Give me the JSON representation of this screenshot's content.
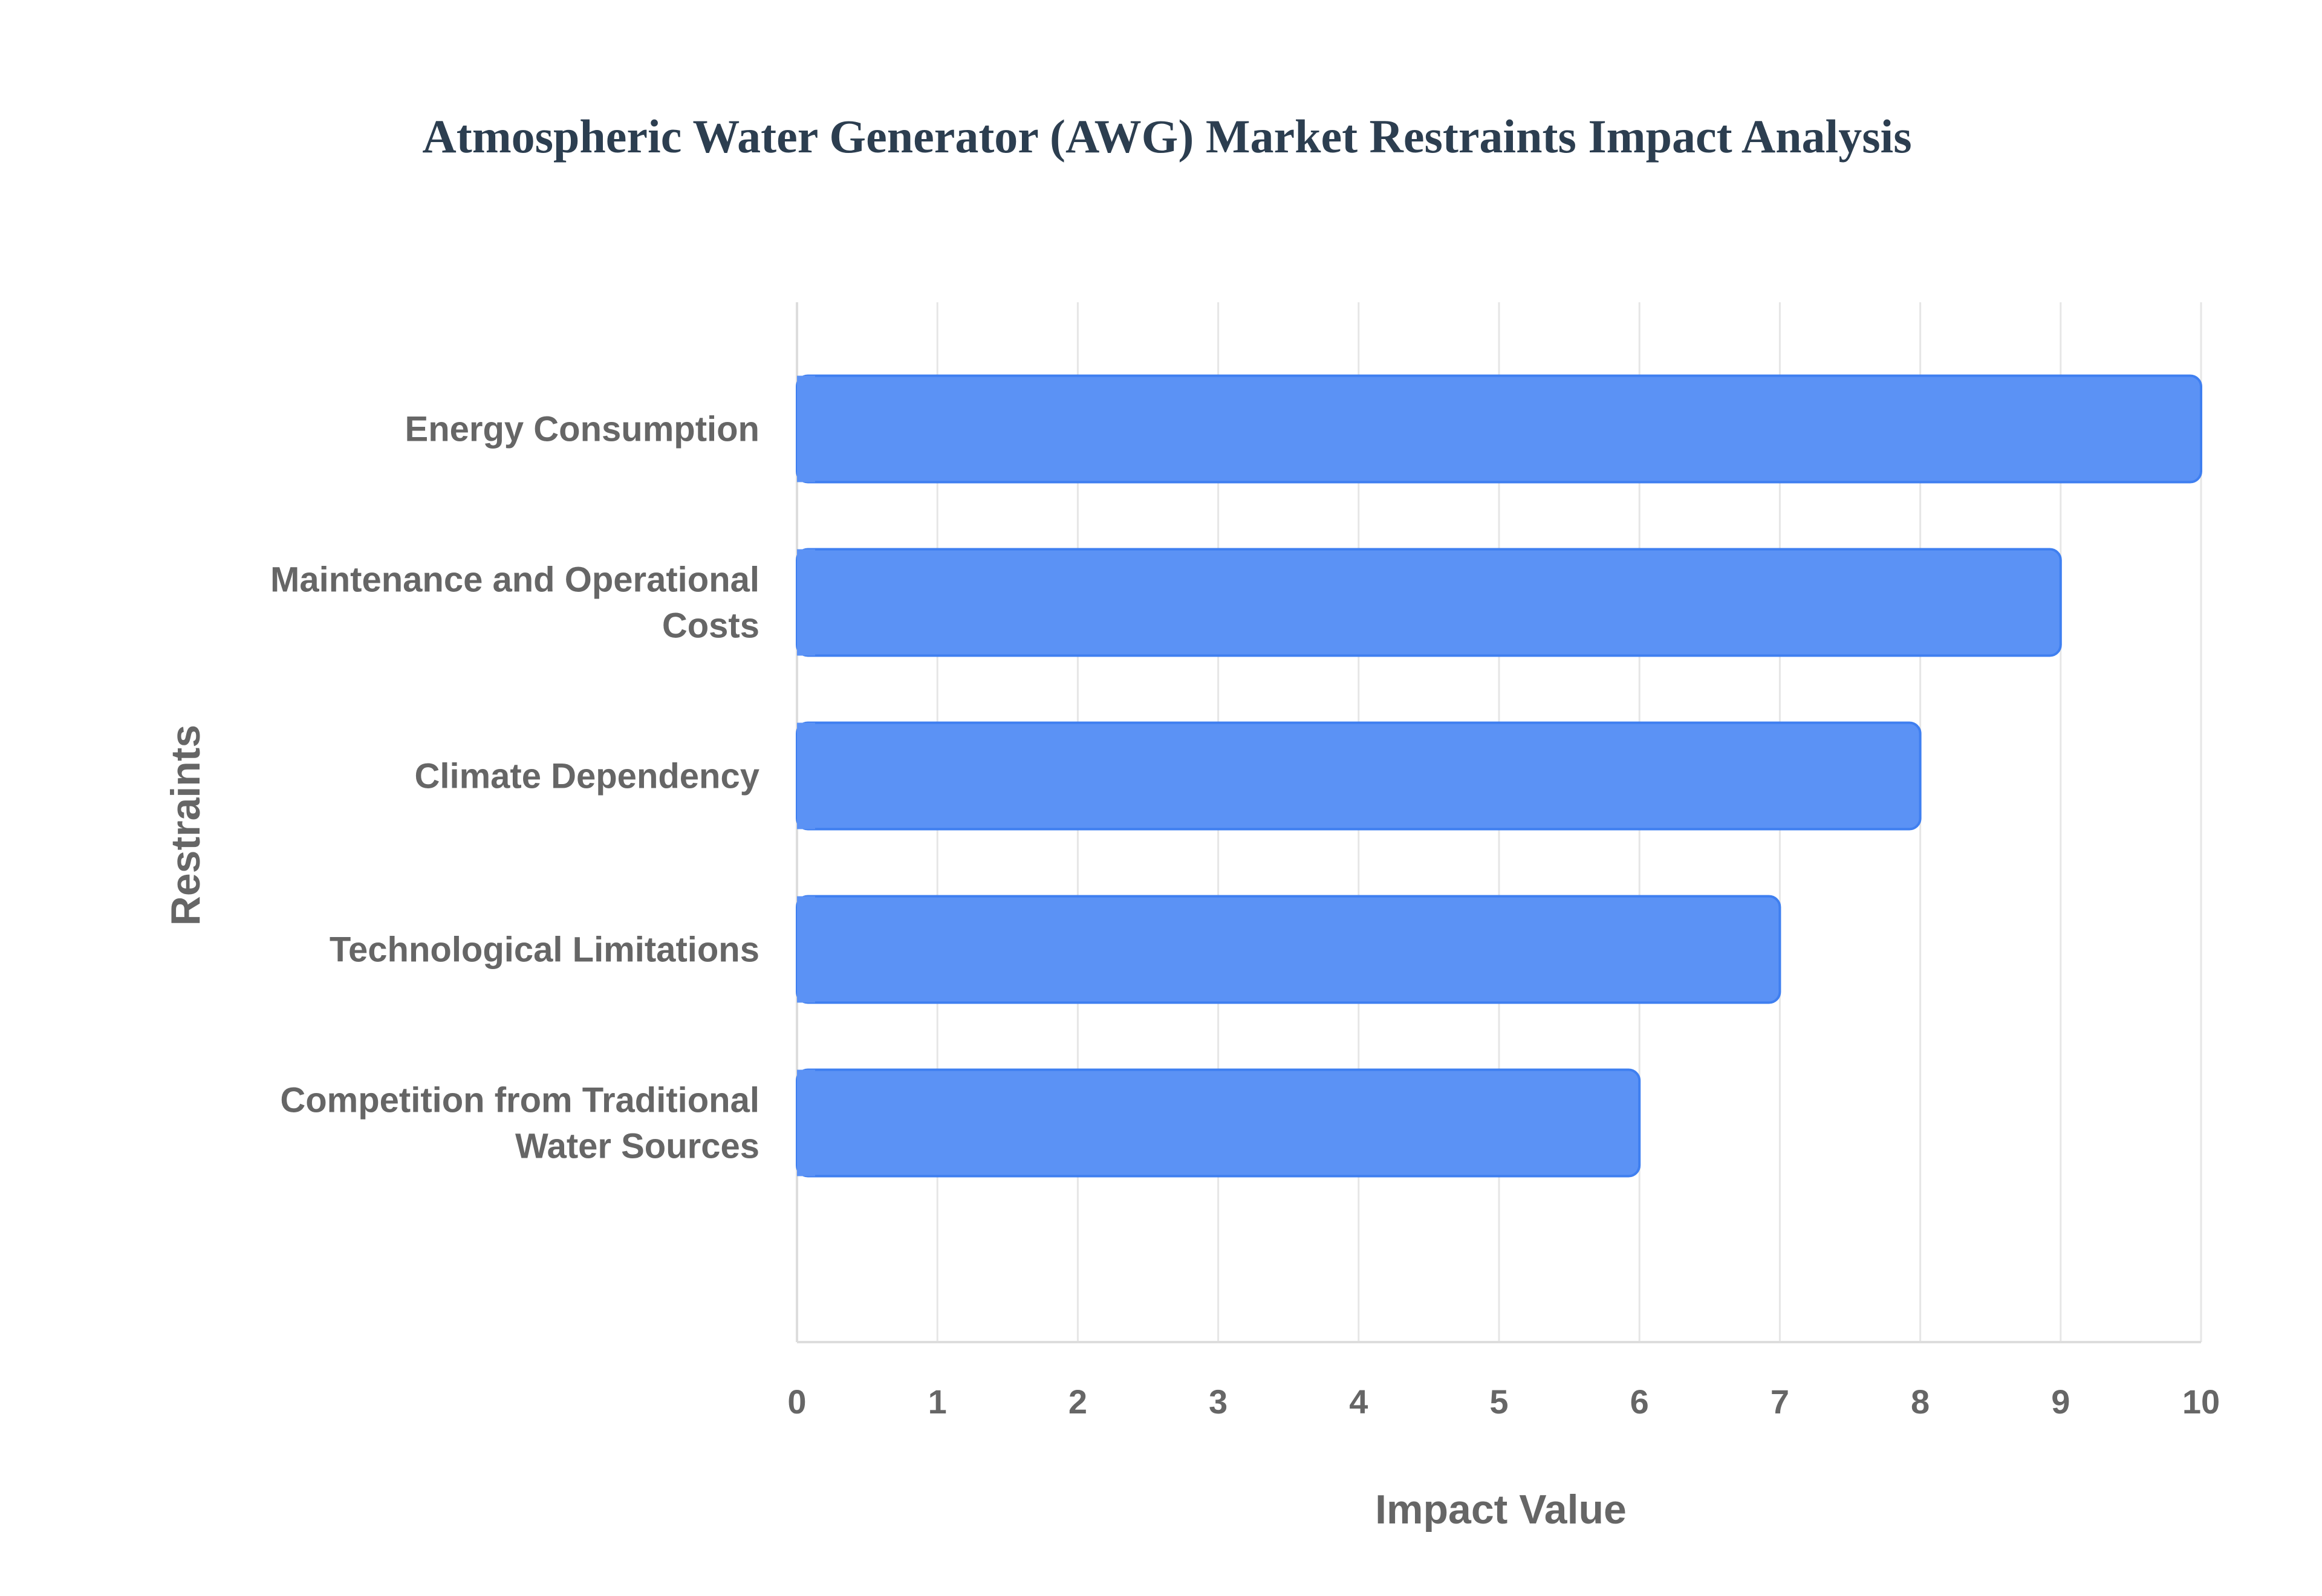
{
  "colors": {
    "title": "#2c3e50",
    "axis_text": "#666666",
    "grid": "#e6e6e6",
    "axis_line": "#dddddd",
    "bar_fill": "#5b92f5",
    "bar_stroke": "#3f7ff0"
  },
  "chart_data": {
    "type": "bar",
    "orientation": "horizontal",
    "title": "Atmospheric Water Generator (AWG) Market Restraints Impact Analysis",
    "xlabel": "Impact Value",
    "ylabel": "Restraints",
    "xlim": [
      0,
      10
    ],
    "xticks": [
      0,
      1,
      2,
      3,
      4,
      5,
      6,
      7,
      8,
      9,
      10
    ],
    "grid": true,
    "legend": "none",
    "categories": [
      [
        "Energy Consumption"
      ],
      [
        "Maintenance and Operational",
        "Costs"
      ],
      [
        "Climate Dependency"
      ],
      [
        "Technological Limitations"
      ],
      [
        "Competition from Traditional",
        "Water Sources"
      ]
    ],
    "values": [
      10,
      9,
      8,
      7,
      6
    ]
  }
}
